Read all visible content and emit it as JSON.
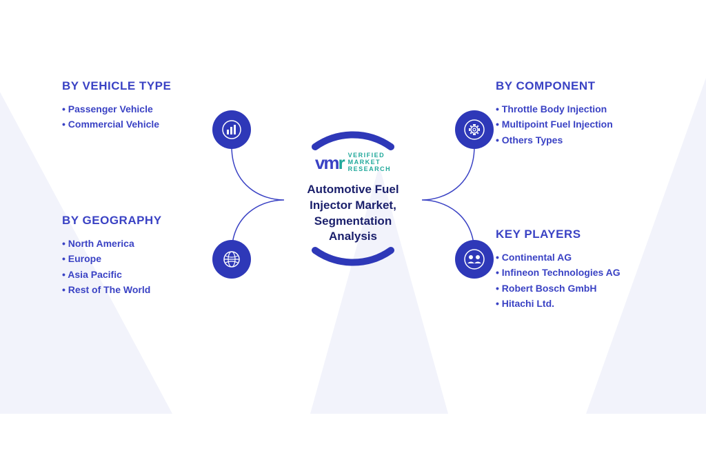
{
  "colors": {
    "primary": "#3a42c4",
    "accent": "#2a3bd6",
    "icon_bg": "#2e38b8",
    "text_dark": "#1a1f6b",
    "logo_teal": "#1fa89a",
    "bg_watermark": "#f2f3fb",
    "white": "#ffffff"
  },
  "logo": {
    "brand_abbrev": "vm",
    "line1": "VERIFIED",
    "line2": "MARKET",
    "line3": "RESEARCH"
  },
  "center": {
    "title": "Automotive Fuel Injector Market, Segmentation Analysis"
  },
  "segments": {
    "top_left": {
      "title": "BY VEHICLE TYPE",
      "items": [
        "Passenger Vehicle",
        "Commercial Vehicle"
      ],
      "icon": "bar-chart-icon"
    },
    "bottom_left": {
      "title": "BY GEOGRAPHY",
      "items": [
        "North America",
        "Europe",
        "Asia Pacific",
        "Rest of The World"
      ],
      "icon": "globe-icon"
    },
    "top_right": {
      "title": "BY COMPONENT",
      "items": [
        "Throttle Body Injection",
        "Multipoint Fuel Injection",
        "Others Types"
      ],
      "icon": "gear-icon"
    },
    "bottom_right": {
      "title": "KEY PLAYERS",
      "items": [
        "Continental AG",
        "Infineon Technologies AG",
        "Robert Bosch GmbH",
        "Hitachi Ltd."
      ],
      "icon": "people-icon"
    }
  },
  "styling": {
    "arc_stroke_width": 10,
    "connector_stroke_width": 1.5,
    "icon_circle_diameter": 56
  }
}
